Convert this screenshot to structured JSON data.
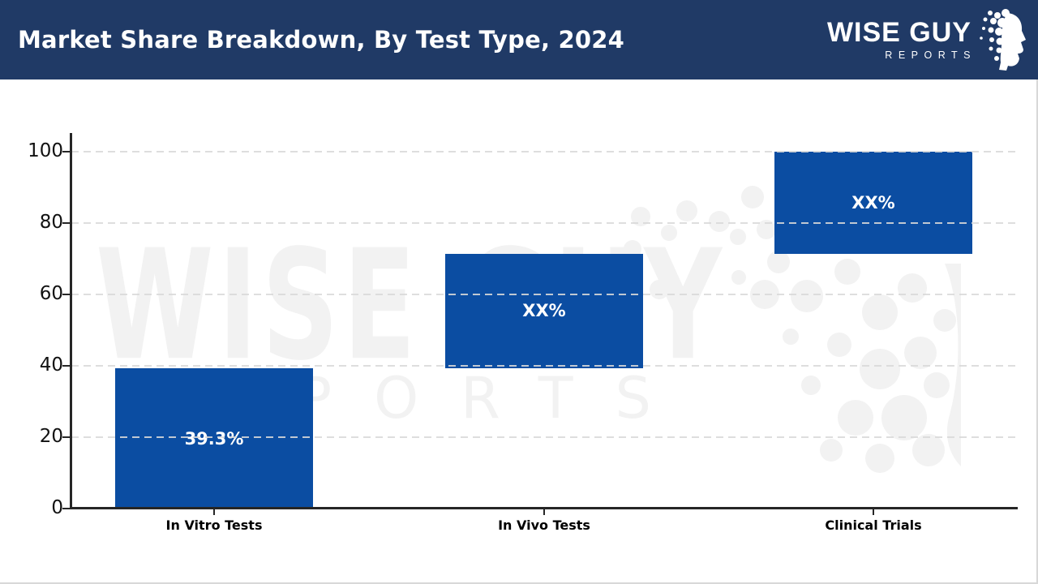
{
  "header": {
    "title": "Market Share Breakdown, By Test Type, 2024",
    "logo": {
      "line1": "WISE GUY",
      "line2": "REPORTS"
    }
  },
  "watermark": {
    "line1": "WISE GUY",
    "line2": "REPORTS"
  },
  "colors": {
    "header_bg": "#203A66",
    "bar_fill": "#0B4DA2",
    "gridline": "#d9d9d9",
    "axis": "#262626",
    "bar_label_text": "#ffffff",
    "watermark": "#f2f2f2"
  },
  "chart_data": {
    "type": "bar",
    "variant": "waterfall",
    "title": "Market Share Breakdown, By Test Type, 2024",
    "categories": [
      "In Vitro Tests",
      "In Vivo Tests",
      "Clinical Trials"
    ],
    "bars": [
      {
        "category": "In Vitro Tests",
        "base": 0,
        "top": 39.3,
        "label": "39.3%"
      },
      {
        "category": "In Vivo Tests",
        "base": 39.3,
        "top": 71.4,
        "label": "XX%"
      },
      {
        "category": "Clinical Trials",
        "base": 71.4,
        "top": 100,
        "label": "XX%"
      }
    ],
    "yticks": [
      0,
      20,
      40,
      60,
      80,
      100
    ],
    "ylim": [
      0,
      100
    ],
    "xlabel": "",
    "ylabel": "",
    "grid": "horizontal dashed",
    "legend": "none"
  }
}
